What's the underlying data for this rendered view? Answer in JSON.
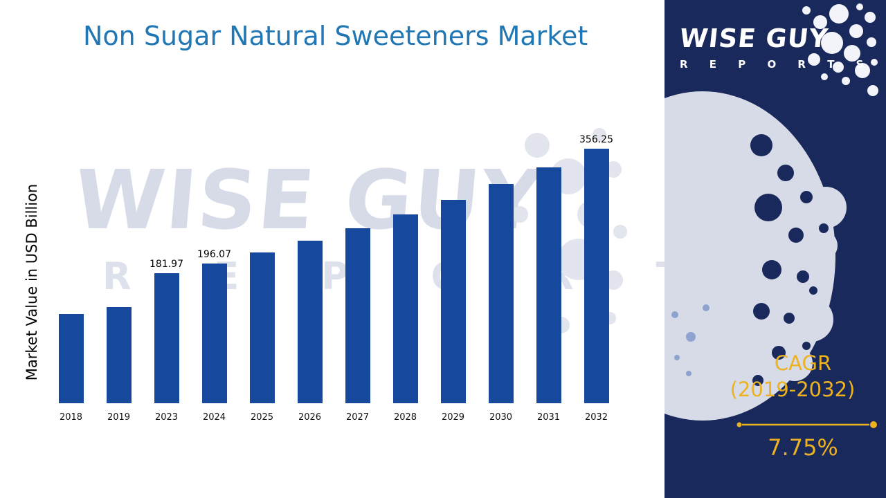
{
  "title": "Non Sugar Natural Sweeteners Market",
  "logo": {
    "name": "WISE GUY",
    "sub": "R E P O R T S"
  },
  "watermark": {
    "line1": "WISE GUY",
    "line2": "R E P O R T"
  },
  "chart_data": {
    "type": "bar",
    "title": "Non Sugar Natural Sweeteners Market",
    "ylabel": "Market Value in USD Billion",
    "categories": [
      "2018",
      "2019",
      "2023",
      "2024",
      "2025",
      "2026",
      "2027",
      "2028",
      "2029",
      "2030",
      "2031",
      "2032"
    ],
    "values": [
      125.34,
      135.05,
      181.97,
      196.07,
      211.26,
      227.63,
      245.28,
      264.29,
      284.77,
      306.84,
      330.62,
      356.25
    ],
    "value_labels": [
      "",
      "",
      "181.97",
      "196.07",
      "",
      "",
      "",
      "",
      "",
      "",
      "",
      "356.25"
    ],
    "bar_color": "#16499e",
    "ylim": [
      0,
      380
    ],
    "grid": false,
    "legend_position": "none"
  },
  "sidebar": {
    "cagr_label": "CAGR",
    "cagr_period": "(2019-2032)",
    "cagr_value": "7.75%",
    "accent_color": "#ecb220",
    "bg_color": "#1a295c"
  }
}
